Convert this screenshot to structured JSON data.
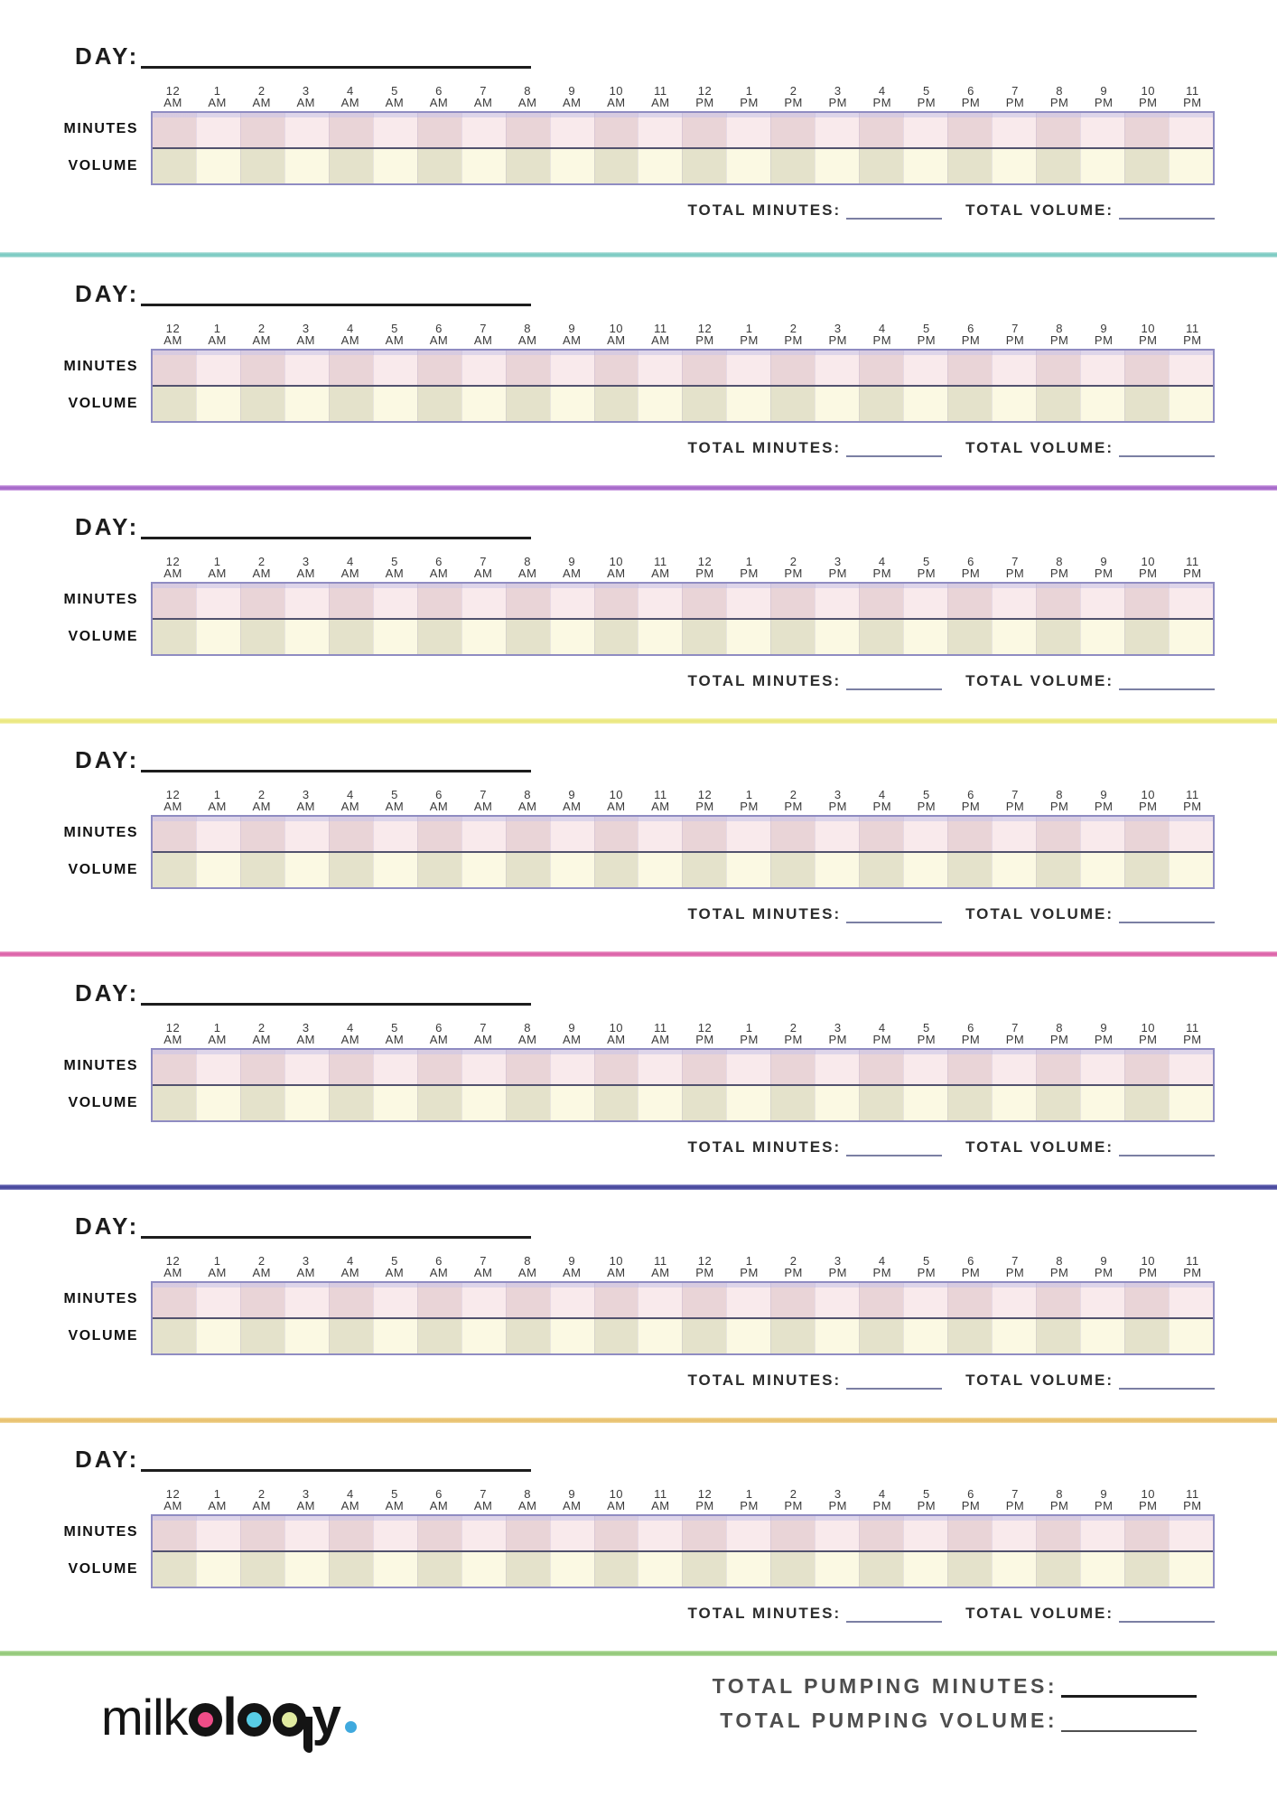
{
  "labels": {
    "day": "DAY:",
    "minutes": "MINUTES",
    "volume": "VOLUME",
    "total_minutes": "TOTAL MINUTES:",
    "total_volume": "TOTAL VOLUME:"
  },
  "hours": [
    {
      "num": "12",
      "meridiem": "AM"
    },
    {
      "num": "1",
      "meridiem": "AM"
    },
    {
      "num": "2",
      "meridiem": "AM"
    },
    {
      "num": "3",
      "meridiem": "AM"
    },
    {
      "num": "4",
      "meridiem": "AM"
    },
    {
      "num": "5",
      "meridiem": "AM"
    },
    {
      "num": "6",
      "meridiem": "AM"
    },
    {
      "num": "7",
      "meridiem": "AM"
    },
    {
      "num": "8",
      "meridiem": "AM"
    },
    {
      "num": "9",
      "meridiem": "AM"
    },
    {
      "num": "10",
      "meridiem": "AM"
    },
    {
      "num": "11",
      "meridiem": "AM"
    },
    {
      "num": "12",
      "meridiem": "PM"
    },
    {
      "num": "1",
      "meridiem": "PM"
    },
    {
      "num": "2",
      "meridiem": "PM"
    },
    {
      "num": "3",
      "meridiem": "PM"
    },
    {
      "num": "4",
      "meridiem": "PM"
    },
    {
      "num": "5",
      "meridiem": "PM"
    },
    {
      "num": "6",
      "meridiem": "PM"
    },
    {
      "num": "7",
      "meridiem": "PM"
    },
    {
      "num": "8",
      "meridiem": "PM"
    },
    {
      "num": "9",
      "meridiem": "PM"
    },
    {
      "num": "10",
      "meridiem": "PM"
    },
    {
      "num": "11",
      "meridiem": "PM"
    }
  ],
  "days": [
    {
      "divider_core": "#7fccc4",
      "divider_edge": "#cdeae6"
    },
    {
      "divider_core": "#a76bca",
      "divider_edge": "#dcb4ec"
    },
    {
      "divider_core": "#ebe883",
      "divider_edge": "#f7f5c0"
    },
    {
      "divider_core": "#dd66aa",
      "divider_edge": "#f2b4d6"
    },
    {
      "divider_core": "#4a4b9f",
      "divider_edge": "#9a9ad0"
    },
    {
      "divider_core": "#e9c372",
      "divider_edge": "#f4e0ae"
    },
    {
      "divider_core": "#96ca7c",
      "divider_edge": "#c9e6ba"
    }
  ],
  "colors": {
    "minutes_cell_dark": "#e9d4d7",
    "minutes_cell_light": "#f9eaec",
    "volume_cell_dark": "#e4e2cb",
    "volume_cell_light": "#fbf9e3",
    "grid_border": "#8f8cc2",
    "row_separator": "#52526e",
    "total_field_line": "#7b7fa3"
  },
  "footer": {
    "brand": [
      {
        "t": "milk",
        "style": "plain"
      },
      {
        "t": "o",
        "style": "o",
        "color": "#ee4d88"
      },
      {
        "t": "l",
        "style": "bold"
      },
      {
        "t": "o",
        "style": "o",
        "color": "#58cde6"
      },
      {
        "t": "g",
        "style": "g",
        "color": "#e0eaa0"
      },
      {
        "t": "y",
        "style": "bold"
      },
      {
        "t": ".",
        "style": "dot",
        "color": "#3fa9de"
      }
    ],
    "total_pumping_minutes": "TOTAL PUMPING MINUTES:",
    "total_pumping_volume": "TOTAL PUMPING VOLUME:"
  }
}
